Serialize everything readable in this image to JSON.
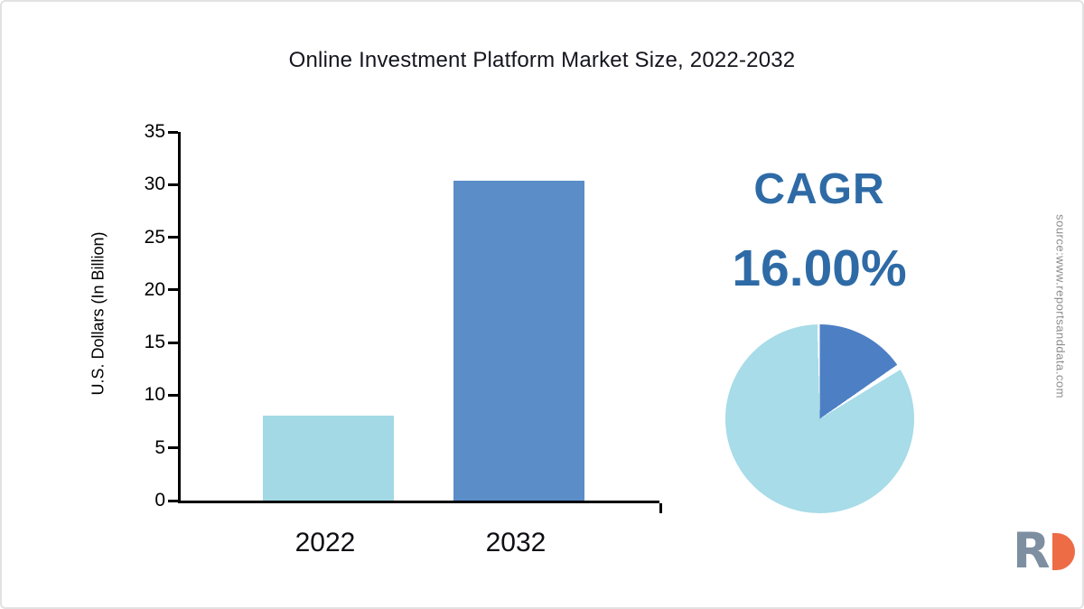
{
  "header": {
    "title": "Online Investment Platform Market Size, 2022-2032"
  },
  "chart_data": [
    {
      "type": "bar",
      "title": "Online Investment Platform Market Size, 2022-2032",
      "categories": [
        "2022",
        "2032"
      ],
      "values": [
        8.1,
        30.4
      ],
      "xlabel": "",
      "ylabel": "U.S. Dollars (In Billion)",
      "ylim": [
        0,
        35
      ],
      "ytick_step": 5,
      "yticks": [
        0,
        5,
        10,
        15,
        20,
        25,
        30,
        35
      ],
      "grid": false,
      "legend": false,
      "bar_colors": [
        "#a2d9e4",
        "#5b8dc9"
      ]
    },
    {
      "type": "pie",
      "annotation": {
        "label": "CAGR",
        "value": "16.00%",
        "color": "#2e6ba6"
      },
      "start_angle_deg": 0,
      "direction": "clockwise",
      "slices": [
        {
          "name": "cagr-highlight",
          "value": 16,
          "color": "#4d7fc4"
        },
        {
          "name": "remainder",
          "value": 84,
          "color": "#a7dce8"
        }
      ]
    }
  ],
  "source": {
    "text": "source:www.reportsanddata.com"
  },
  "logo": {
    "letter_r": "R",
    "letter_d": "D",
    "r_color": "#7d8fa0",
    "d_color": "#ed6c45"
  }
}
